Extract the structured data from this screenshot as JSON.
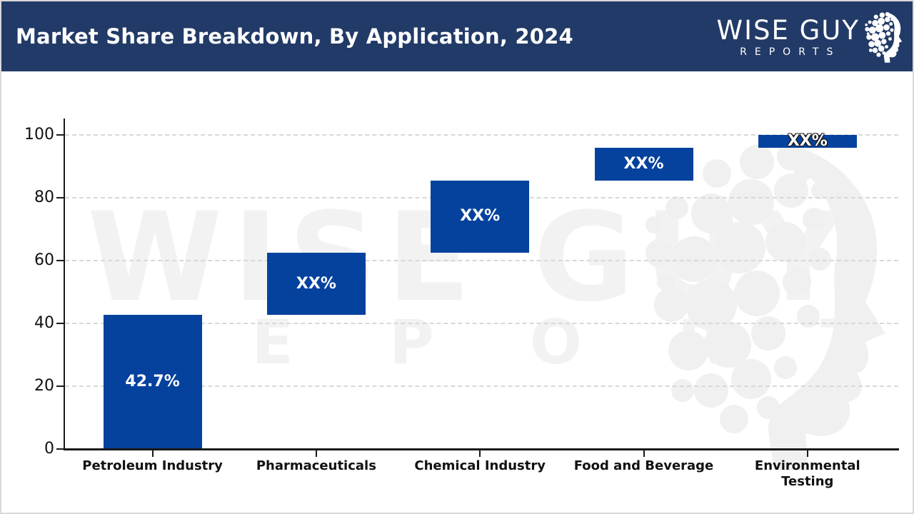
{
  "header": {
    "title": "Market Share Breakdown, By Application, 2024",
    "logo": {
      "line1": "WISE GUY",
      "line2": "REPORTS"
    }
  },
  "watermark": {
    "line1": "WISE GUY",
    "line2": "R E P O R T S"
  },
  "colors": {
    "header_bg": "#223a67",
    "bar": "#05429e",
    "bar_label": "#ffffff",
    "gridline": "#d8d8d8",
    "axis": "#1a1a1a",
    "watermark": "#f2f2f2",
    "figure_border": "#d9d9d9"
  },
  "chart_data": {
    "type": "bar",
    "subtype": "waterfall",
    "title": "Market Share Breakdown, By Application, 2024",
    "xlabel": "",
    "ylabel": "",
    "ylim": [
      0,
      105
    ],
    "yticks": [
      0,
      20,
      40,
      60,
      80,
      100
    ],
    "grid": "horizontal-dashed",
    "legend": "none",
    "categories": [
      "Petroleum Industry",
      "Pharmaceuticals",
      "Chemical Industry",
      "Food and Beverage",
      "Environmental\nTesting"
    ],
    "segments": [
      {
        "category": "Petroleum Industry",
        "start": 0,
        "end": 42.7,
        "label": "42.7%"
      },
      {
        "category": "Pharmaceuticals",
        "start": 42.7,
        "end": 62.5,
        "label": "XX%"
      },
      {
        "category": "Chemical Industry",
        "start": 62.5,
        "end": 85.5,
        "label": "XX%"
      },
      {
        "category": "Food and Beverage",
        "start": 85.5,
        "end": 96.0,
        "label": "XX%"
      },
      {
        "category": "Environmental Testing",
        "start": 96.0,
        "end": 100.0,
        "label": "XX%"
      }
    ],
    "bar_color": "#05429e",
    "value_label_color": "#ffffff"
  }
}
